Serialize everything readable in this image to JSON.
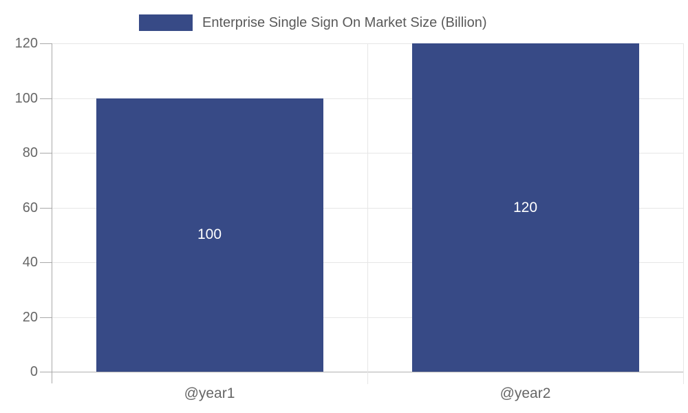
{
  "legend": {
    "label": "Enterprise Single Sign On Market Size (Billion)"
  },
  "chart_data": {
    "type": "bar",
    "categories": [
      "@year1",
      "@year2"
    ],
    "values": [
      100,
      120
    ],
    "data_labels": [
      "100",
      "120"
    ],
    "series": [
      {
        "name": "Enterprise Single Sign On Market Size (Billion)",
        "values": [
          100,
          120
        ]
      }
    ],
    "title": "",
    "xlabel": "",
    "ylabel": "",
    "ylim": [
      0,
      120
    ],
    "yticks": [
      0,
      20,
      40,
      60,
      80,
      100,
      120
    ],
    "grid": true,
    "legend_position": "top-center",
    "colors": {
      "bar": "#374a86",
      "axis_line": "#a8a8a8",
      "baseline": "#b0b0b0",
      "grid_line": "#e6e6e6",
      "tick_label": "#666666",
      "x_label": "#666666",
      "data_label": "#ffffff",
      "legend_text": "#595959",
      "background": "#ffffff"
    }
  }
}
